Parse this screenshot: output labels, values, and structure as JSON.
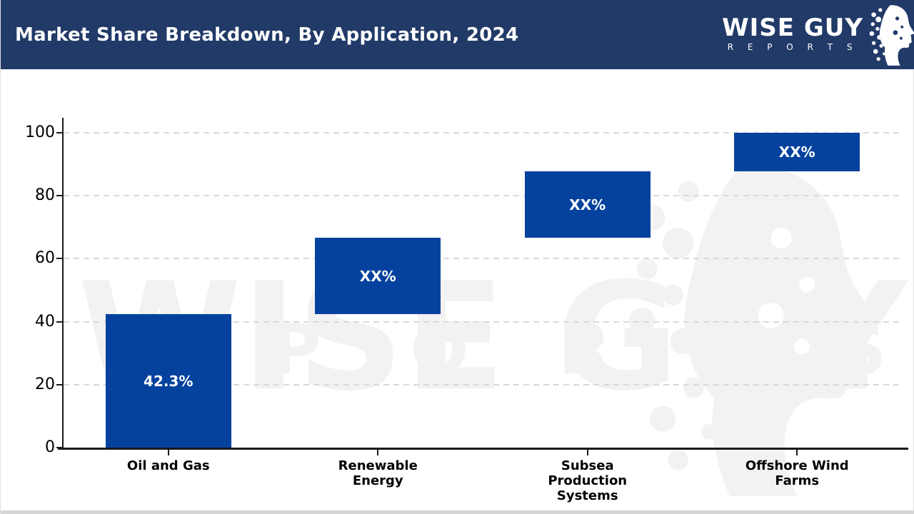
{
  "header": {
    "title": "Market Share Breakdown, By Application, 2024",
    "bg_color": "#213A68",
    "logo": {
      "wordmark": "WISE GUY",
      "subtext": "R E P O R T S"
    }
  },
  "watermark": {
    "line1": "WISE GUY",
    "line2": "P O R T S"
  },
  "chart_data": {
    "type": "bar",
    "subtype": "waterfall-floating-bars",
    "title": "Market Share Breakdown, By Application, 2024",
    "categories": [
      "Oil and Gas",
      "Renewable Energy",
      "Subsea Production Systems",
      "Offshore Wind Farms"
    ],
    "segments": [
      {
        "category": "Oil and Gas",
        "start": 0,
        "end": 42.3,
        "label": "42.3%"
      },
      {
        "category": "Renewable Energy",
        "start": 42.3,
        "end": 66.6,
        "label": "XX%"
      },
      {
        "category": "Subsea Production Systems",
        "start": 66.6,
        "end": 87.7,
        "label": "XX%"
      },
      {
        "category": "Offshore Wind Farms",
        "start": 87.7,
        "end": 100,
        "label": "XX%"
      }
    ],
    "ylim": [
      0,
      100
    ],
    "y_ticks": [
      0,
      20,
      40,
      60,
      80,
      100
    ],
    "xlabel": "",
    "ylabel": "",
    "grid": "horizontal-dashed",
    "legend": false,
    "bar_color": "#04429E",
    "bar_label_color": "#FFFFFF",
    "axis_color": "#1a1a1a",
    "gridline_color": "#d9d9d9"
  }
}
